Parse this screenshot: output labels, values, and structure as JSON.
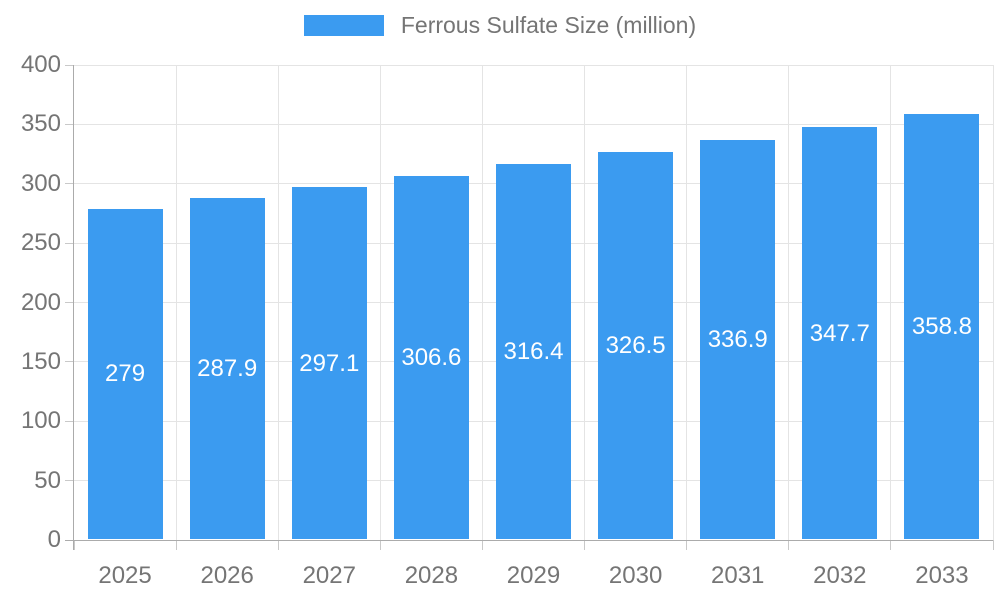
{
  "legend": {
    "label": "Ferrous Sulfate Size (million)"
  },
  "chart_data": {
    "type": "bar",
    "title": "Ferrous Sulfate Size (million)",
    "categories": [
      "2025",
      "2026",
      "2027",
      "2028",
      "2029",
      "2030",
      "2031",
      "2032",
      "2033"
    ],
    "values": [
      279,
      287.9,
      297.1,
      306.6,
      316.4,
      326.5,
      336.9,
      347.7,
      358.8
    ],
    "value_labels": [
      "279",
      "287.9",
      "297.1",
      "306.6",
      "316.4",
      "326.5",
      "336.9",
      "347.7",
      "358.8"
    ],
    "xlabel": "",
    "ylabel": "",
    "ylim": [
      0,
      400
    ],
    "y_ticks": [
      0,
      50,
      100,
      150,
      200,
      250,
      300,
      350,
      400
    ],
    "grid": true,
    "legend_position": "top center",
    "colors": {
      "bar": "#3B9BF0",
      "grid": "#E4E4E4",
      "axis": "#ABABAB",
      "tick": "#C9C9C9",
      "tick_text": "#757575",
      "value_text": "#FFFFFF",
      "background": "#FFFFFF"
    }
  }
}
